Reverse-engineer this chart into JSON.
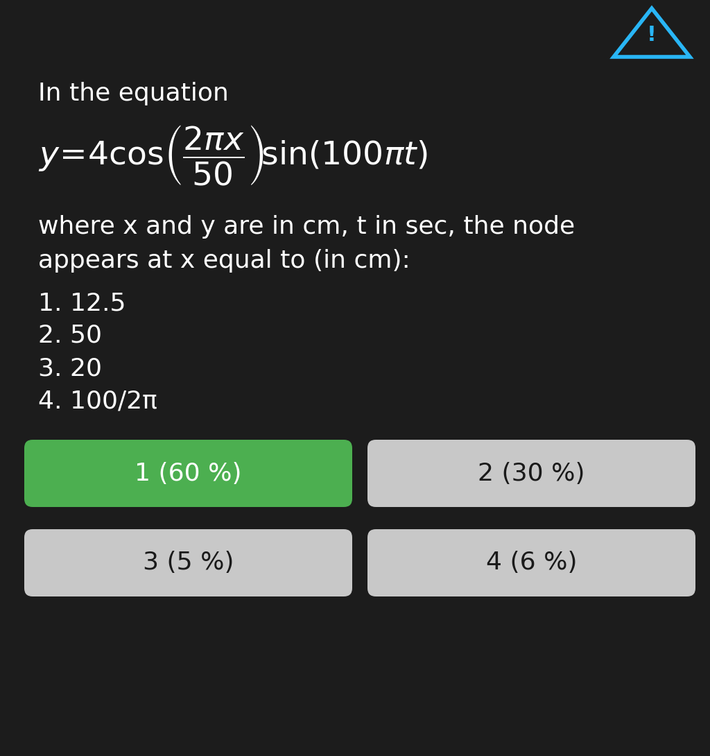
{
  "background_color": "#1c1c1c",
  "text_color": "#ffffff",
  "dark_text_color": "#1a1a1a",
  "intro_line": "In the equation",
  "body_text": "where x and y are in cm, t in sec, the node\nappears at x equal to (in cm):",
  "options": [
    "1. 12.5",
    "2. 50",
    "3. 20",
    "4. 100/2π"
  ],
  "buttons": [
    {
      "label": "1 (60 %)",
      "color": "#4caf50",
      "text_color": "#ffffff",
      "row": 0,
      "col": 0
    },
    {
      "label": "2 (30 %)",
      "color": "#c8c8c8",
      "text_color": "#1a1a1a",
      "row": 0,
      "col": 1
    },
    {
      "label": "3 (5 %)",
      "color": "#c8c8c8",
      "text_color": "#1a1a1a",
      "row": 1,
      "col": 0
    },
    {
      "label": "4 (6 %)",
      "color": "#c8c8c8",
      "text_color": "#1a1a1a",
      "row": 1,
      "col": 1
    }
  ],
  "warning_icon_color": "#29b6f6",
  "font_size_intro": 26,
  "font_size_body": 26,
  "font_size_options": 26,
  "font_size_button": 26,
  "font_size_eq": 34,
  "fig_width": 10.24,
  "fig_height": 10.9,
  "dpi": 100
}
